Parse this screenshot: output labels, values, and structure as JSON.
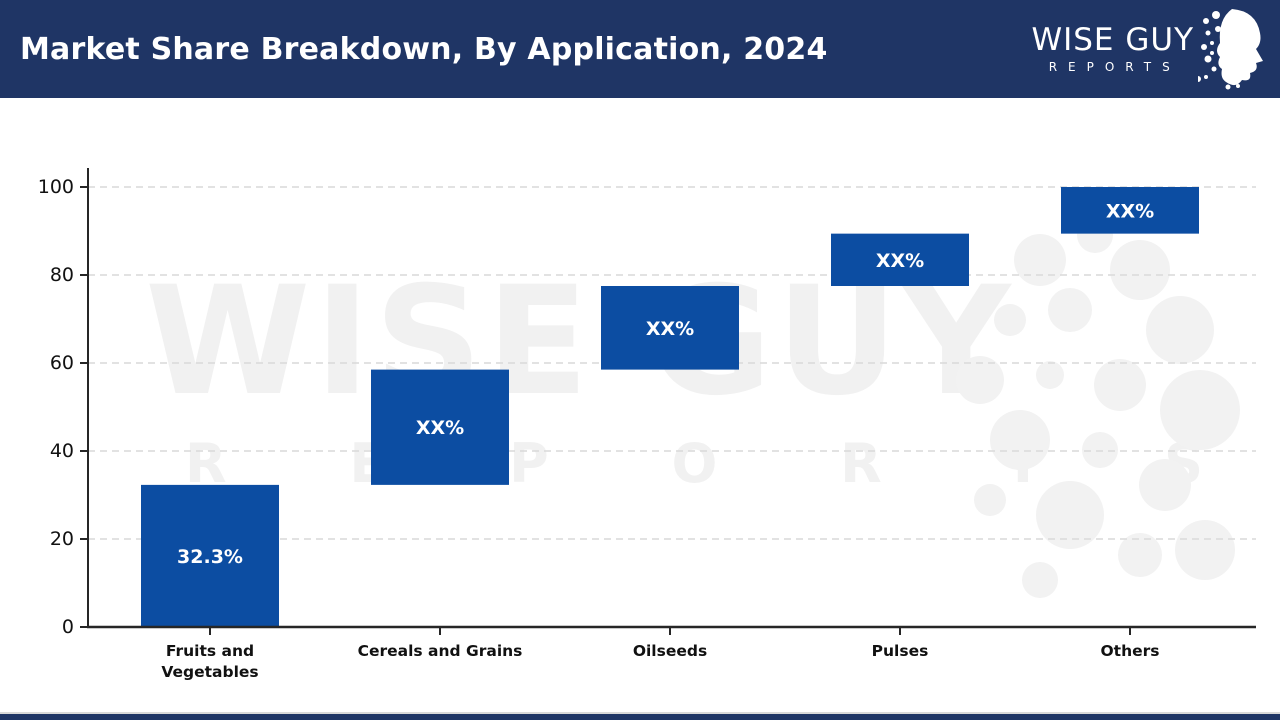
{
  "header": {
    "title": "Market Share Breakdown, By Application, 2024",
    "logo": {
      "wordmark": "WISE GUY",
      "subtitle": "REPORTS"
    }
  },
  "watermark": {
    "wordmark": "WISE GUY",
    "subtitle": "R E P O R T S"
  },
  "chart_data": {
    "type": "bar",
    "subtype": "waterfall",
    "title": "Market Share Breakdown, By Application, 2024",
    "categories": [
      "Fruits and\nVegetables",
      "Cereals and Grains",
      "Oilseeds",
      "Pulses",
      "Others"
    ],
    "segments": [
      {
        "category": "Fruits and Vegetables",
        "start": 0,
        "end": 32.3,
        "label": "32.3%"
      },
      {
        "category": "Cereals and Grains",
        "start": 32.3,
        "end": 58.5,
        "label": "XX%"
      },
      {
        "category": "Oilseeds",
        "start": 58.5,
        "end": 77.5,
        "label": "XX%"
      },
      {
        "category": "Pulses",
        "start": 77.5,
        "end": 89.4,
        "label": "XX%"
      },
      {
        "category": "Others",
        "start": 89.4,
        "end": 100,
        "label": "XX%"
      }
    ],
    "xlabel": "",
    "ylabel": "",
    "yticks": [
      0,
      20,
      40,
      60,
      80,
      100
    ],
    "ylim": [
      0,
      104
    ],
    "grid": "horizontal dashed, no grid at 0",
    "legend": "none"
  },
  "colors": {
    "header_bg": "#1f3565",
    "bar": "#0c4da2",
    "bar_label": "#ffffff",
    "grid": "#d9d9d9",
    "axis": "#262626",
    "tick_text": "#111111",
    "watermark": "#f1f1f1",
    "footer_bar": "#1f3565",
    "footer_line": "#d9d9d9"
  }
}
